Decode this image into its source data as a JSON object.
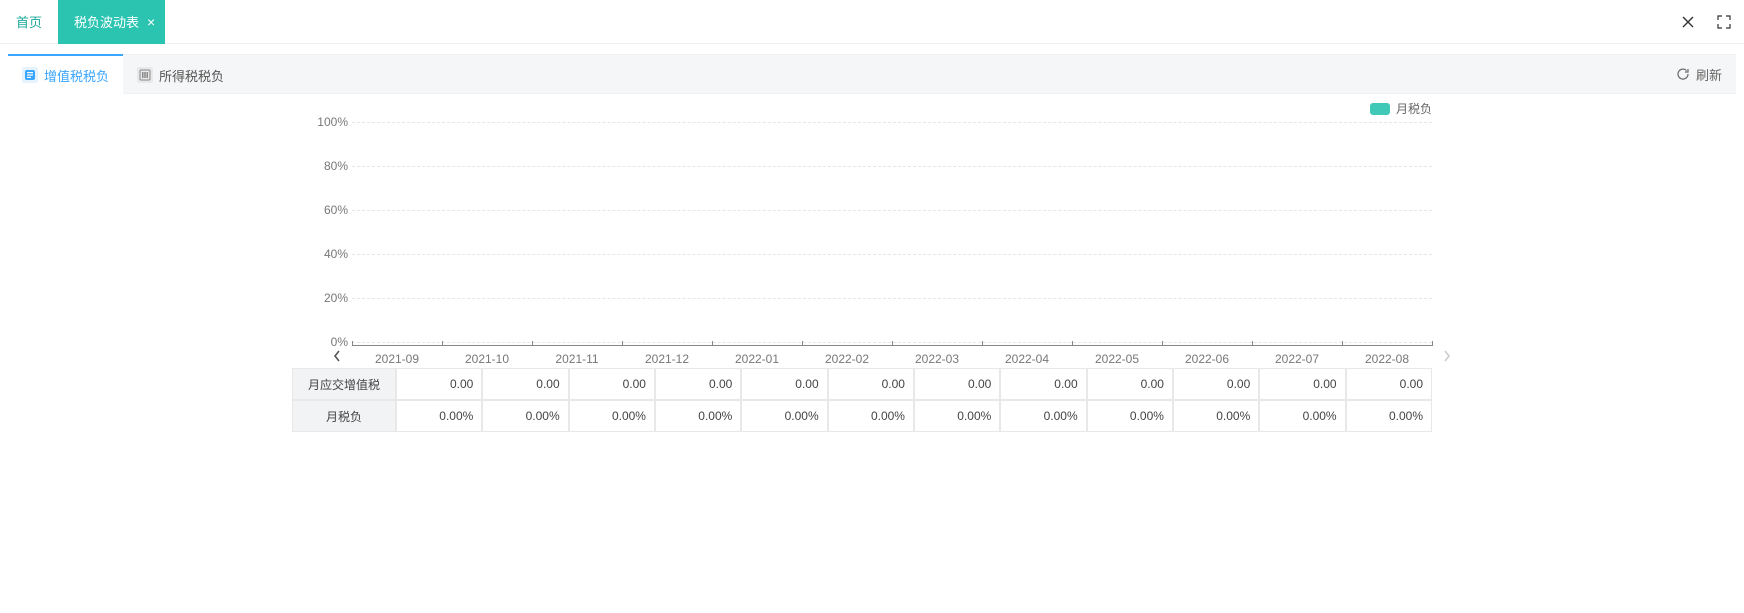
{
  "tabstrip": {
    "home_label": "首页",
    "active_tab_label": "税负波动表",
    "close_glyph": "×"
  },
  "subtabs": {
    "items": [
      {
        "label": "增值税税负",
        "icon_color": "#3aa6ff",
        "active": true
      },
      {
        "label": "所得税税负",
        "icon_color": "#888",
        "active": false
      }
    ],
    "refresh_label": "刷新"
  },
  "chart": {
    "type": "line",
    "legend_label": "月税负",
    "legend_color": "#40c9b7",
    "background_color": "#ffffff",
    "grid_color": "#e6e6e6",
    "axis_color": "#888888",
    "ylabel_color": "#777777",
    "ylim": [
      0,
      100
    ],
    "ytick_step": 20,
    "ytick_labels": [
      "0%",
      "20%",
      "40%",
      "60%",
      "80%",
      "100%"
    ],
    "categories": [
      "2021-09",
      "2021-10",
      "2021-11",
      "2021-12",
      "2022-01",
      "2022-02",
      "2022-03",
      "2022-04",
      "2022-05",
      "2022-06",
      "2022-07",
      "2022-08"
    ],
    "series": [
      {
        "name": "月税负",
        "values": [
          0,
          0,
          0,
          0,
          0,
          0,
          0,
          0,
          0,
          0,
          0,
          0
        ]
      }
    ]
  },
  "table": {
    "row_headers": [
      "月应交增值税",
      "月税负"
    ],
    "rows": [
      [
        "0.00",
        "0.00",
        "0.00",
        "0.00",
        "0.00",
        "0.00",
        "0.00",
        "0.00",
        "0.00",
        "0.00",
        "0.00",
        "0.00"
      ],
      [
        "0.00%",
        "0.00%",
        "0.00%",
        "0.00%",
        "0.00%",
        "0.00%",
        "0.00%",
        "0.00%",
        "0.00%",
        "0.00%",
        "0.00%",
        "0.00%"
      ]
    ]
  }
}
